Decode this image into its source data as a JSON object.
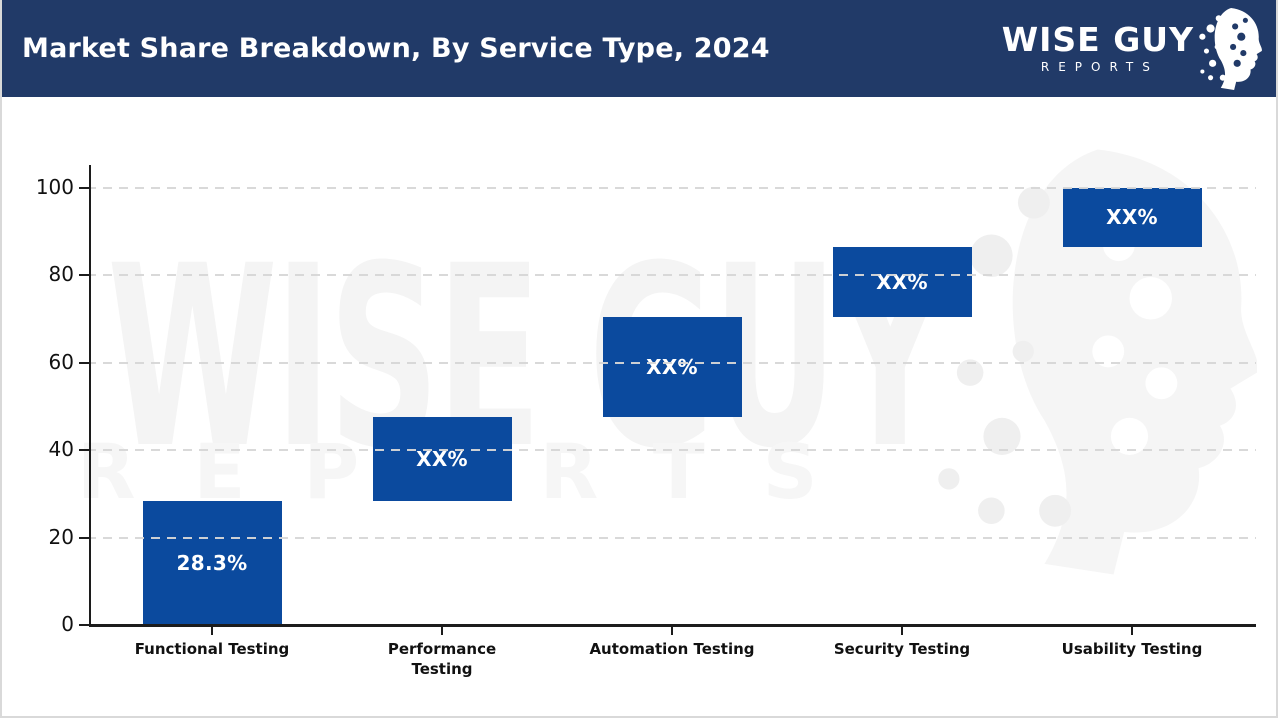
{
  "header": {
    "title": "Market Share Breakdown, By Service Type, 2024",
    "logo": {
      "line1": "WISE GUY",
      "line2": "REPORTS"
    }
  },
  "watermark": {
    "line1": "WISE GUY",
    "line2": "REPORTS"
  },
  "colors": {
    "header_bg": "#213a68",
    "bar": "#0b4a9e",
    "grid": "#d7d7d7",
    "axis": "#1c1c1c",
    "bar_label": "#ffffff"
  },
  "chart_data": {
    "type": "bar",
    "subtype": "waterfall",
    "title": "Market Share Breakdown, By Service Type, 2024",
    "xlabel": "",
    "ylabel": "",
    "ylim": [
      0,
      105
    ],
    "yticks": [
      0,
      20,
      40,
      60,
      80,
      100
    ],
    "grid": "horizontal-dashed",
    "categories": [
      "Functional Testing",
      "Performance Testing",
      "Automation Testing",
      "Security Testing",
      "Usability Testing"
    ],
    "segments": [
      {
        "category": "Functional Testing",
        "category_lines": [
          "Functional Testing"
        ],
        "start": 0,
        "end": 28.3,
        "label": "28.3%"
      },
      {
        "category": "Performance Testing",
        "category_lines": [
          "Performance",
          "Testing"
        ],
        "start": 28.3,
        "end": 47.6,
        "label": "XX%"
      },
      {
        "category": "Automation Testing",
        "category_lines": [
          "Automation Testing"
        ],
        "start": 47.6,
        "end": 70.5,
        "label": "XX%"
      },
      {
        "category": "Security Testing",
        "category_lines": [
          "Security Testing"
        ],
        "start": 70.5,
        "end": 86.5,
        "label": "XX%"
      },
      {
        "category": "Usability Testing",
        "category_lines": [
          "Usability Testing"
        ],
        "start": 86.5,
        "end": 100,
        "label": "XX%"
      }
    ]
  }
}
